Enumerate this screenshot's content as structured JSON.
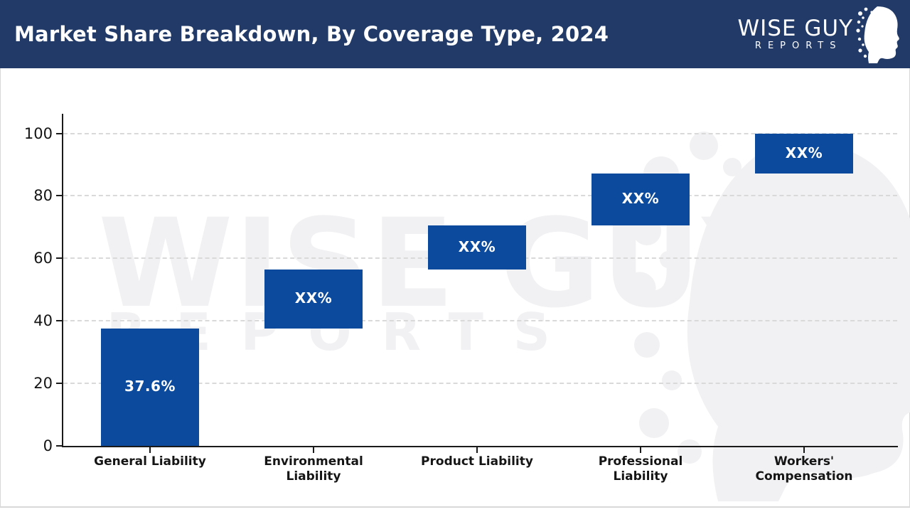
{
  "header": {
    "title": "Market Share Breakdown, By Coverage Type, 2024",
    "logo": {
      "wordmark": "WISE GUY",
      "sub": "REPORTS"
    }
  },
  "watermark": {
    "wordmark": "WISE GUY",
    "sub": "REPORTS"
  },
  "chart_data": {
    "type": "bar",
    "subtype": "waterfall",
    "title": "Market Share Breakdown, By Coverage Type, 2024",
    "xlabel": "",
    "ylabel": "",
    "categories": [
      "General Liability",
      "Environmental Liability",
      "Product Liability",
      "Professional Liability",
      "Workers' Compensation"
    ],
    "segments": [
      {
        "start": 0,
        "end": 37.6,
        "label": "37.6%"
      },
      {
        "start": 37.6,
        "end": 56.4,
        "label": "XX%"
      },
      {
        "start": 56.4,
        "end": 70.5,
        "label": "XX%"
      },
      {
        "start": 70.5,
        "end": 87.2,
        "label": "XX%"
      },
      {
        "start": 87.2,
        "end": 100,
        "label": "XX%"
      }
    ],
    "ylim": [
      0,
      100
    ],
    "yticks": [
      0,
      20,
      40,
      60,
      80,
      100
    ],
    "grid": "horizontal dashed",
    "legend": "none"
  },
  "colors": {
    "header_bg": "#223a67",
    "bar": "#0b4a9c",
    "grid": "#d9d9d9",
    "axis": "#1a1a1a",
    "value_label": "#ffffff",
    "watermark": "#f1f1f3"
  }
}
